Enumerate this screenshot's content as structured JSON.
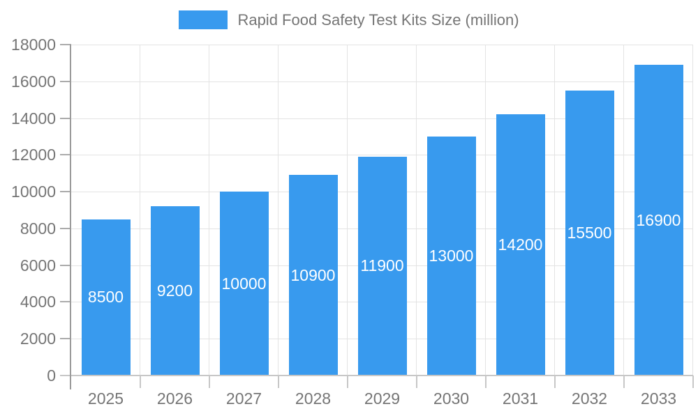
{
  "chart_data": {
    "type": "bar",
    "title": "",
    "legend": "Rapid Food Safety Test Kits Size (million)",
    "legend_position": "top",
    "categories": [
      "2025",
      "2026",
      "2027",
      "2028",
      "2029",
      "2030",
      "2031",
      "2032",
      "2033"
    ],
    "series": [
      {
        "name": "Rapid Food Safety Test Kits Size (million)",
        "values": [
          8500,
          9200,
          10000,
          10900,
          11900,
          13000,
          14200,
          15500,
          16900
        ]
      }
    ],
    "xlabel": "",
    "ylabel": "",
    "ylim": [
      0,
      18000
    ],
    "ytick_step": 2000,
    "yticks": [
      0,
      2000,
      4000,
      6000,
      8000,
      10000,
      12000,
      14000,
      16000,
      18000
    ],
    "grid": "horizontal and vertical light gray gridlines",
    "bar_color": "#389AEE",
    "bar_value_label_color": "#FFFFFF",
    "axis_text_color": "#757575",
    "gridline_color": "#E3E3E3",
    "background_color": "#FFFFFF"
  }
}
